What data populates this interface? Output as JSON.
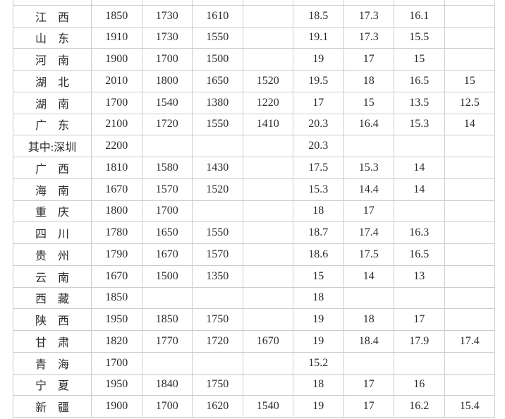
{
  "colors": {
    "border": "#cccccc",
    "text": "#2b2b2b",
    "background": "#ffffff"
  },
  "chart_data": {
    "type": "table",
    "grid": "full",
    "columns_visible": 9,
    "rows": [
      {
        "province": "江　西",
        "values": [
          "1850",
          "1730",
          "1610",
          "",
          "18.5",
          "17.3",
          "16.1",
          ""
        ]
      },
      {
        "province": "山　东",
        "values": [
          "1910",
          "1730",
          "1550",
          "",
          "19.1",
          "17.3",
          "15.5",
          ""
        ]
      },
      {
        "province": "河　南",
        "values": [
          "1900",
          "1700",
          "1500",
          "",
          "19",
          "17",
          "15",
          ""
        ]
      },
      {
        "province": "湖　北",
        "values": [
          "2010",
          "1800",
          "1650",
          "1520",
          "19.5",
          "18",
          "16.5",
          "15"
        ]
      },
      {
        "province": "湖　南",
        "values": [
          "1700",
          "1540",
          "1380",
          "1220",
          "17",
          "15",
          "13.5",
          "12.5"
        ]
      },
      {
        "province": "广　东",
        "values": [
          "2100",
          "1720",
          "1550",
          "1410",
          "20.3",
          "16.4",
          "15.3",
          "14"
        ]
      },
      {
        "province": "其中:深圳",
        "values": [
          "2200",
          "",
          "",
          "",
          "20.3",
          "",
          "",
          ""
        ]
      },
      {
        "province": "广　西",
        "values": [
          "1810",
          "1580",
          "1430",
          "",
          "17.5",
          "15.3",
          "14",
          ""
        ]
      },
      {
        "province": "海　南",
        "values": [
          "1670",
          "1570",
          "1520",
          "",
          "15.3",
          "14.4",
          "14",
          ""
        ]
      },
      {
        "province": "重　庆",
        "values": [
          "1800",
          "1700",
          "",
          "",
          "18",
          "17",
          "",
          ""
        ]
      },
      {
        "province": "四　川",
        "values": [
          "1780",
          "1650",
          "1550",
          "",
          "18.7",
          "17.4",
          "16.3",
          ""
        ]
      },
      {
        "province": "贵　州",
        "values": [
          "1790",
          "1670",
          "1570",
          "",
          "18.6",
          "17.5",
          "16.5",
          ""
        ]
      },
      {
        "province": "云　南",
        "values": [
          "1670",
          "1500",
          "1350",
          "",
          "15",
          "14",
          "13",
          ""
        ]
      },
      {
        "province": "西　藏",
        "values": [
          "1850",
          "",
          "",
          "",
          "18",
          "",
          "",
          ""
        ]
      },
      {
        "province": "陕　西",
        "values": [
          "1950",
          "1850",
          "1750",
          "",
          "19",
          "18",
          "17",
          ""
        ]
      },
      {
        "province": "甘　肃",
        "values": [
          "1820",
          "1770",
          "1720",
          "1670",
          "19",
          "18.4",
          "17.9",
          "17.4"
        ]
      },
      {
        "province": "青　海",
        "values": [
          "1700",
          "",
          "",
          "",
          "15.2",
          "",
          "",
          ""
        ]
      },
      {
        "province": "宁　夏",
        "values": [
          "1950",
          "1840",
          "1750",
          "",
          "18",
          "17",
          "16",
          ""
        ]
      },
      {
        "province": "新　疆",
        "values": [
          "1900",
          "1700",
          "1620",
          "1540",
          "19",
          "17",
          "16.2",
          "15.4"
        ]
      }
    ]
  }
}
